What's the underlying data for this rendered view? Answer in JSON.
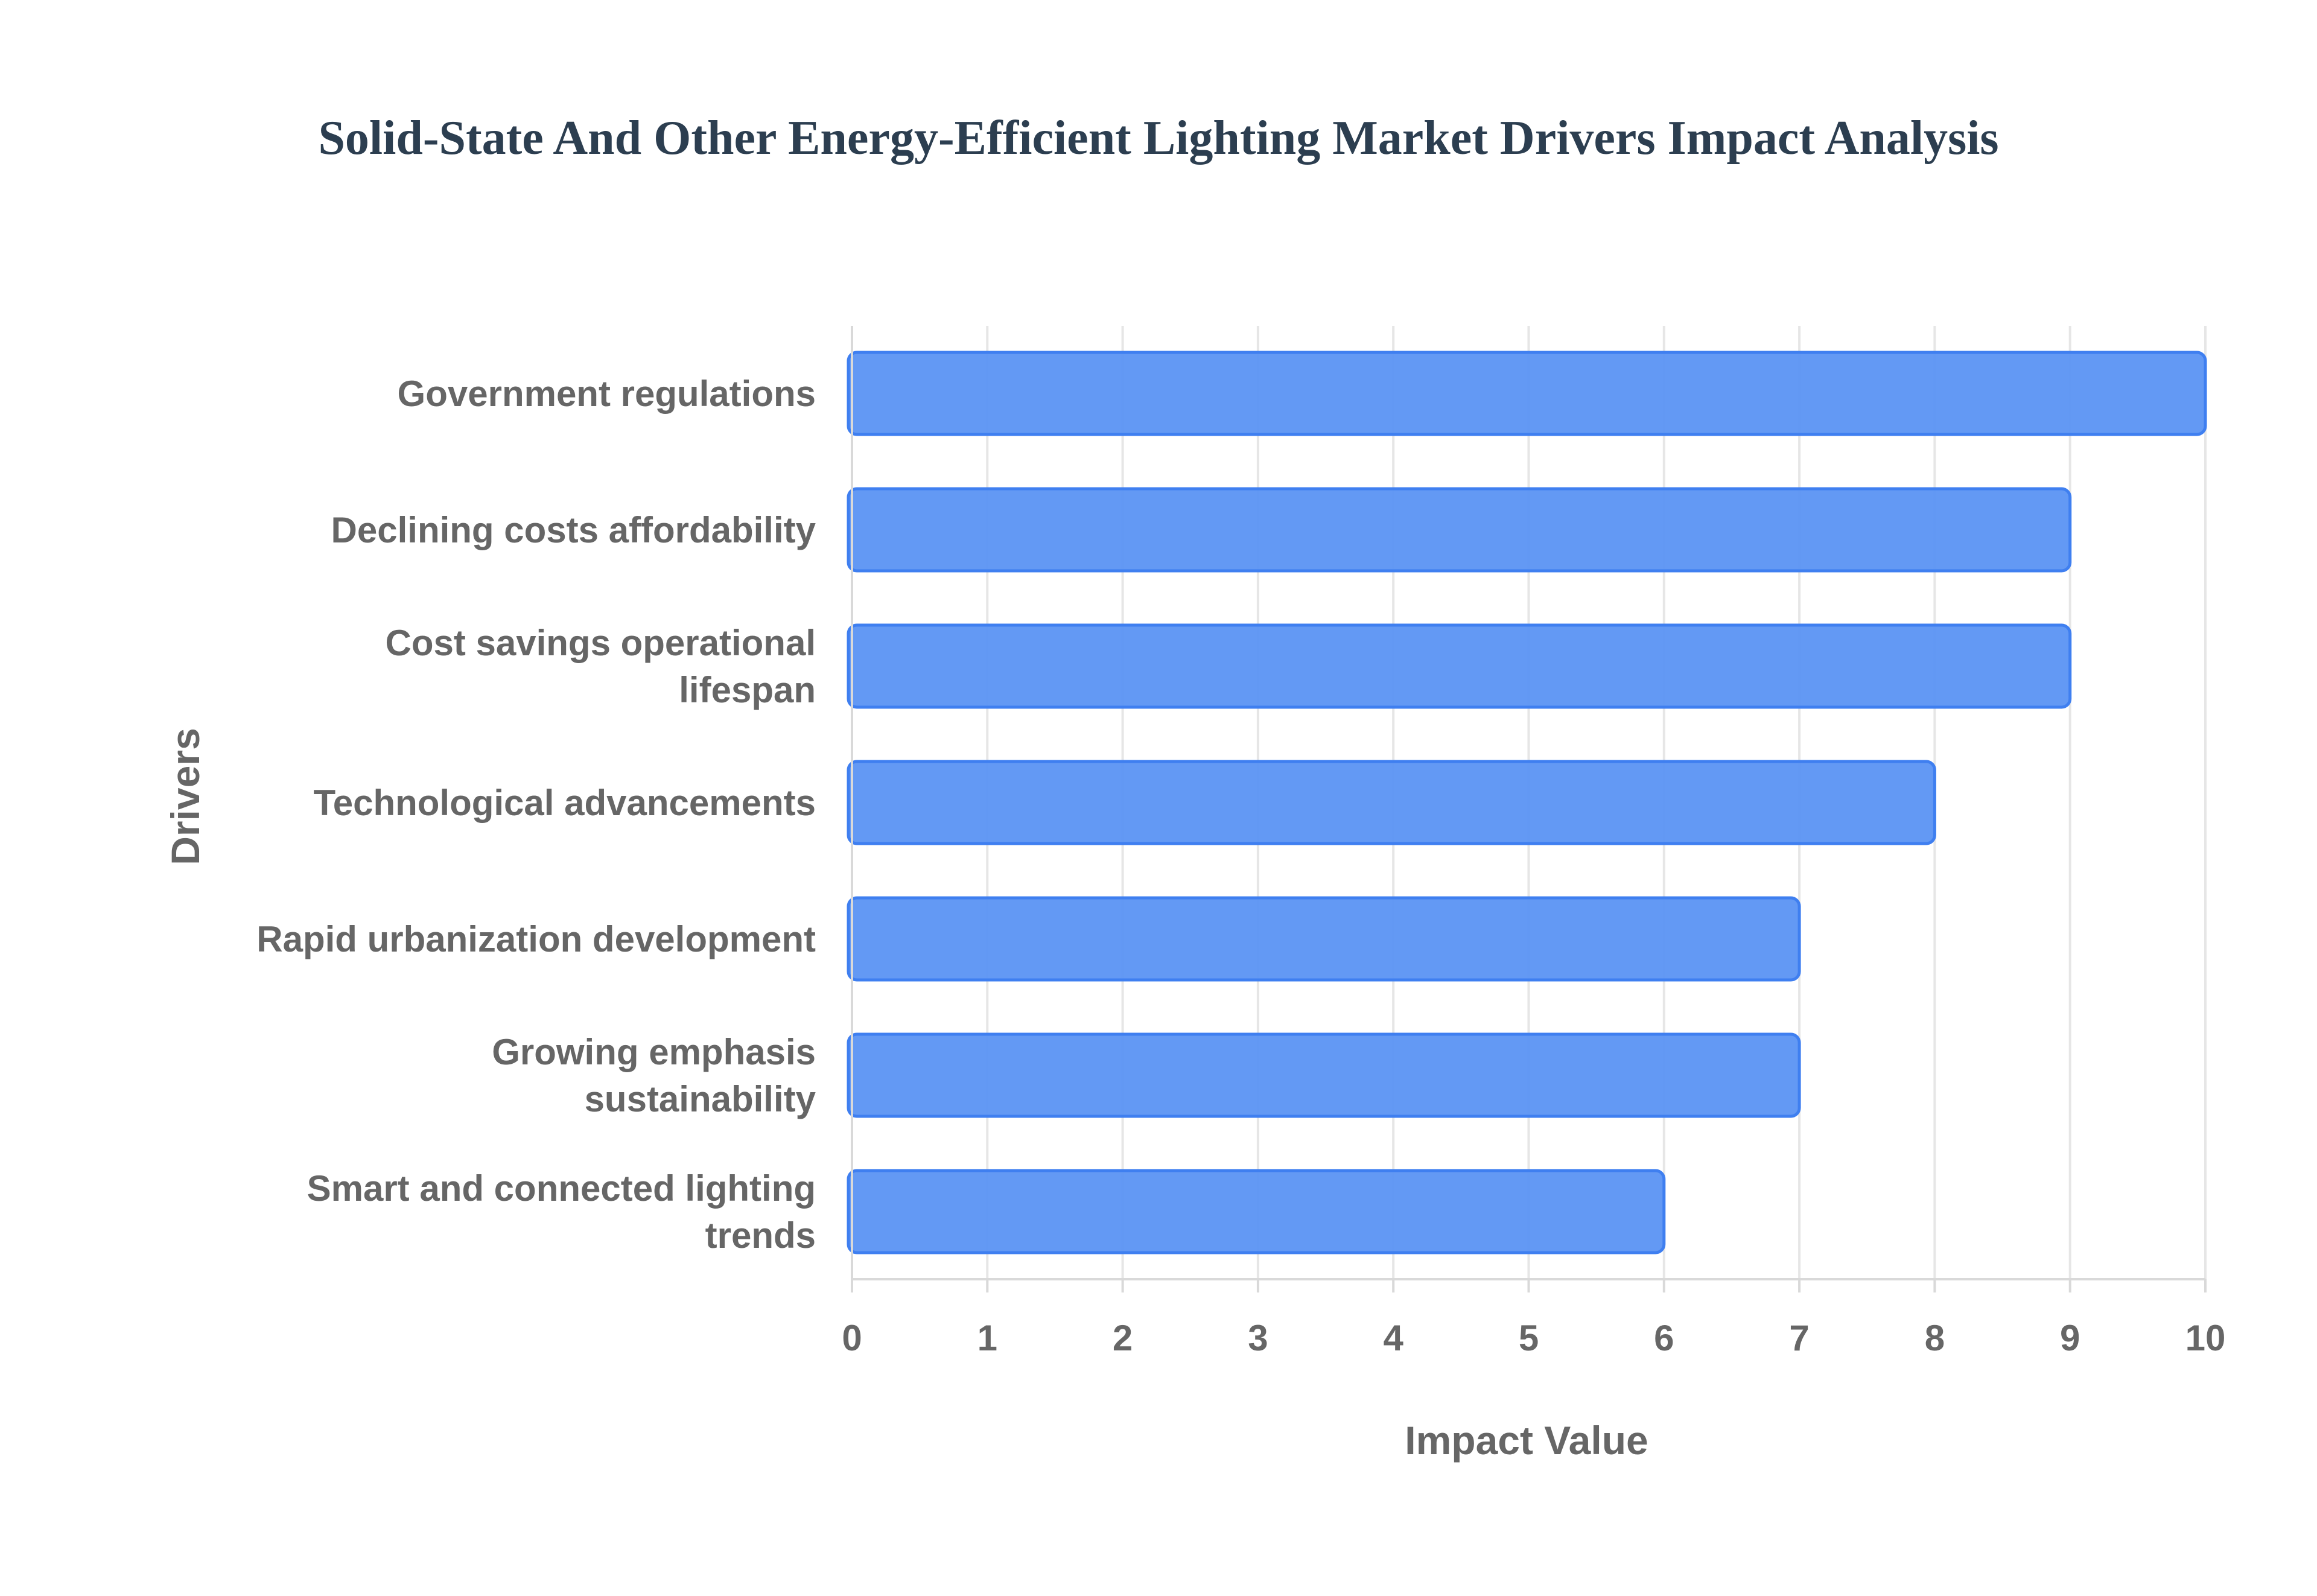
{
  "chart_data": {
    "type": "bar",
    "orientation": "horizontal",
    "title": "Solid-State And Other Energy-Efficient Lighting Market Drivers Impact Analysis",
    "xlabel": "Impact Value",
    "ylabel": "Drivers",
    "categories": [
      [
        "Government regulations"
      ],
      [
        "Declining costs affordability"
      ],
      [
        "Cost savings operational",
        "lifespan"
      ],
      [
        "Technological advancements"
      ],
      [
        "Rapid urbanization development"
      ],
      [
        "Growing emphasis",
        "sustainability"
      ],
      [
        "Smart and connected lighting",
        "trends"
      ]
    ],
    "values": [
      10,
      9,
      9,
      8,
      7,
      7,
      6
    ],
    "xlim": [
      0,
      10
    ],
    "xticks": [
      "0",
      "1",
      "2",
      "3",
      "4",
      "5",
      "6",
      "7",
      "8",
      "9",
      "10"
    ],
    "grid": true,
    "legend": "none",
    "bar_color": "#5b93f3",
    "bar_edge_color": "#3f7ff0",
    "title_color": "#2c3e50",
    "label_color": "#666666"
  }
}
